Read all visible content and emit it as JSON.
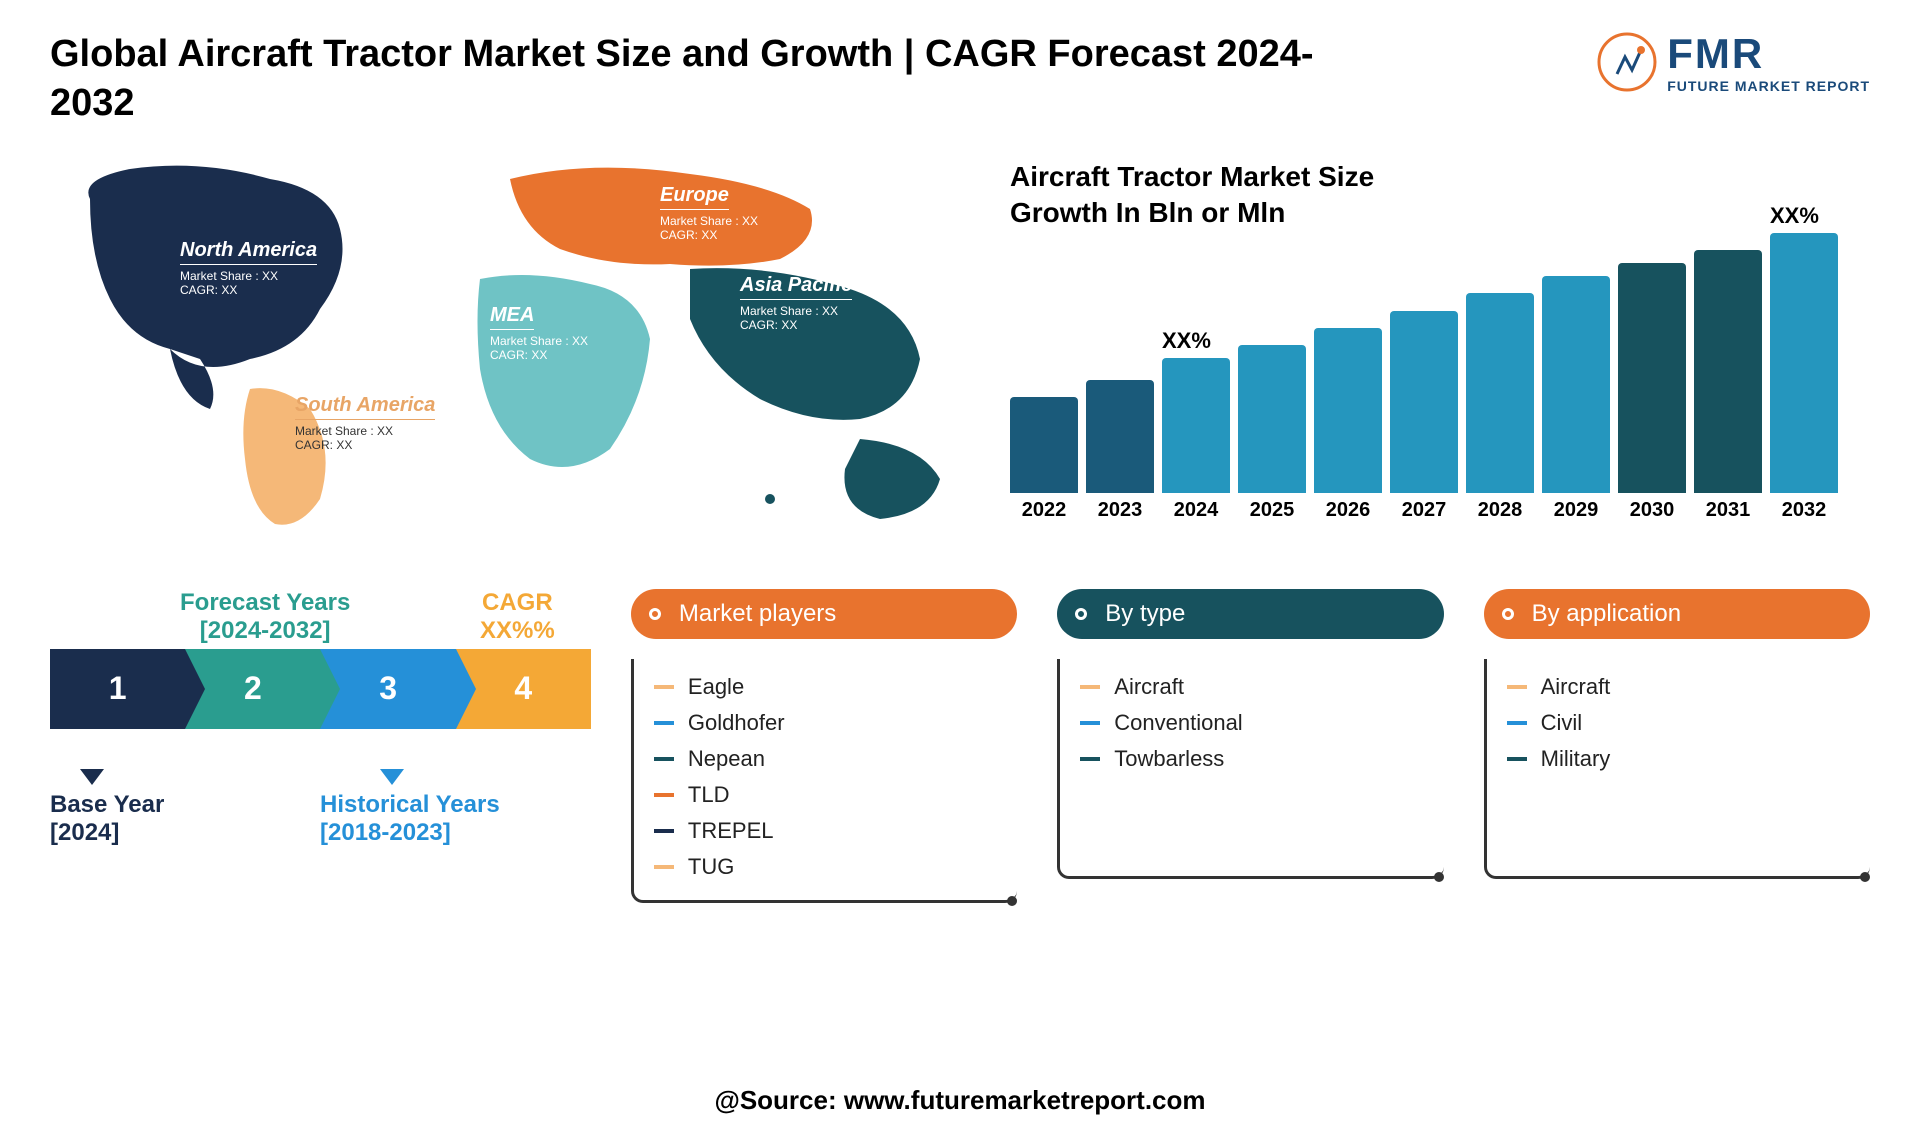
{
  "title": "Global Aircraft Tractor Market Size and Growth | CAGR Forecast 2024-2032",
  "logo": {
    "main": "FMR",
    "sub": "FUTURE MARKET REPORT"
  },
  "map": {
    "regions": {
      "na": {
        "name": "North America",
        "share": "Market Share : XX",
        "cagr": "CAGR: XX",
        "color": "#1a2d4d"
      },
      "sa": {
        "name": "South America",
        "share": "Market Share : XX",
        "cagr": "CAGR: XX",
        "color": "#f5b878"
      },
      "eu": {
        "name": "Europe",
        "share": "Market Share : XX",
        "cagr": "CAGR: XX",
        "color": "#e8732e"
      },
      "mea": {
        "name": "MEA",
        "share": "Market Share : XX",
        "cagr": "CAGR: XX",
        "color": "#6fc3c5"
      },
      "ap": {
        "name": "Asia Pacific",
        "share": "Market Share : XX",
        "cagr": "CAGR: XX",
        "color": "#17525e"
      }
    }
  },
  "chart": {
    "title": "Aircraft Tractor Market Size Growth In Bln or Mln",
    "type": "bar",
    "years": [
      "2022",
      "2023",
      "2024",
      "2025",
      "2026",
      "2027",
      "2028",
      "2029",
      "2030",
      "2031",
      "2032"
    ],
    "values": [
      110,
      130,
      155,
      170,
      190,
      210,
      230,
      250,
      265,
      280,
      300
    ],
    "colors": [
      "#1a5a7a",
      "#1a5a7a",
      "#2596be",
      "#2596be",
      "#2596be",
      "#2596be",
      "#2596be",
      "#2596be",
      "#17525e",
      "#17525e",
      "#2596be"
    ],
    "max": 300,
    "annot": {
      "2": "XX%",
      "10": "XX%"
    },
    "label_fontsize": 20
  },
  "timeline": {
    "forecast": {
      "label": "Forecast Years",
      "range": "[2024-2032]",
      "color": "#2a9d8f"
    },
    "cagr": {
      "label": "CAGR",
      "value": "XX%%",
      "color": "#f4a836"
    },
    "base": {
      "label": "Base Year",
      "range": "[2024]",
      "color": "#1a2d4d"
    },
    "hist": {
      "label": "Historical Years",
      "range": "[2018-2023]",
      "color": "#2590d8"
    },
    "segments": [
      {
        "num": "1",
        "color": "#1a2d4d"
      },
      {
        "num": "2",
        "color": "#2a9d8f"
      },
      {
        "num": "3",
        "color": "#2590d8"
      },
      {
        "num": "4",
        "color": "#f4a836"
      }
    ]
  },
  "pills": {
    "players": {
      "title": "Market players",
      "color": "#e8732e",
      "items": [
        "Eagle",
        "Goldhofer",
        "Nepean",
        "TLD",
        "TREPEL",
        "TUG"
      ],
      "dash_colors": [
        "#f5b878",
        "#2590d8",
        "#17525e",
        "#e8732e",
        "#1a2d4d",
        "#f5b878"
      ]
    },
    "type": {
      "title": "By type",
      "color": "#17525e",
      "items": [
        "Aircraft",
        "Conventional",
        "Towbarless"
      ],
      "dash_colors": [
        "#f5b878",
        "#2590d8",
        "#17525e"
      ]
    },
    "app": {
      "title": "By application",
      "color": "#e8732e",
      "items": [
        "Aircraft",
        "Civil",
        "Military"
      ],
      "dash_colors": [
        "#f5b878",
        "#2590d8",
        "#17525e"
      ]
    }
  },
  "source": "@Source: www.futuremarketreport.com"
}
